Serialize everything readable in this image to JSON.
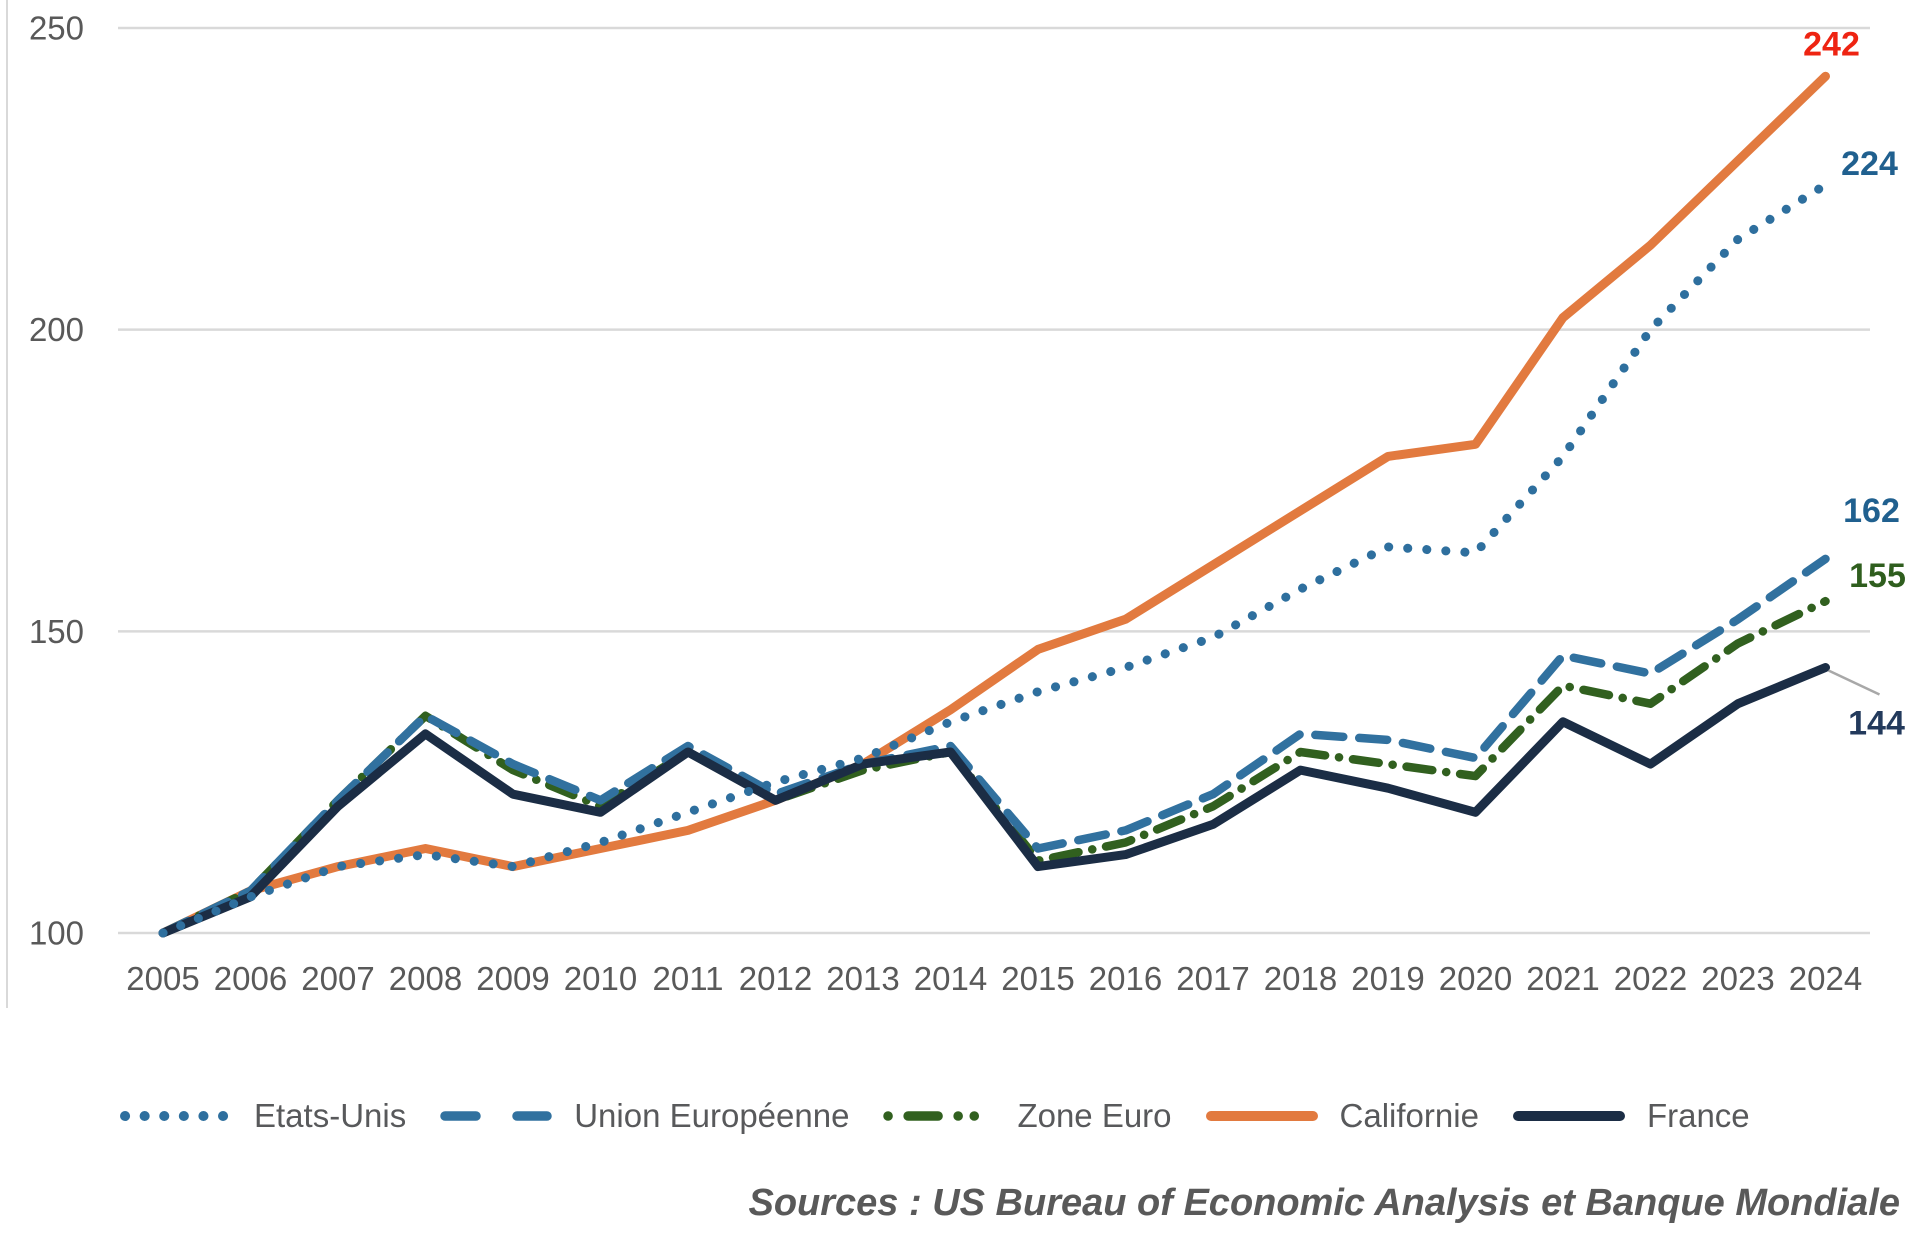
{
  "chart_data": {
    "type": "line",
    "title": "",
    "xlabel": "",
    "ylabel": "",
    "categories": [
      "2005",
      "2006",
      "2007",
      "2008",
      "2009",
      "2010",
      "2011",
      "2012",
      "2013",
      "2014",
      "2015",
      "2016",
      "2017",
      "2018",
      "2019",
      "2020",
      "2021",
      "2022",
      "2023",
      "2024"
    ],
    "y_ticks": [
      100,
      150,
      200,
      250
    ],
    "ylim": [
      100,
      250
    ],
    "grid": true,
    "legend_position": "bottom",
    "axis_text_color": "#595959",
    "grid_color": "#D9D9D9",
    "leader_color": "#A8A8A8",
    "series": [
      {
        "name": "Etats-Unis",
        "style": "dotted",
        "color": "#2E6F9E",
        "label_color": "#20608F",
        "end_label": "224",
        "end_label_offset": [
          44,
          -10
        ],
        "z": 5,
        "values": [
          100,
          106,
          111,
          113,
          111,
          115,
          120,
          125,
          129,
          135,
          140,
          144,
          149,
          157,
          164,
          163,
          179,
          200,
          215,
          224
        ]
      },
      {
        "name": "Union Européenne",
        "style": "dashed",
        "color": "#31719F",
        "label_color": "#20608F",
        "end_label": "162",
        "end_label_offset": [
          46,
          -37
        ],
        "z": 3,
        "values": [
          100,
          107,
          122,
          136,
          128,
          122,
          131,
          123,
          128,
          131,
          114,
          117,
          123,
          133,
          132,
          129,
          146,
          143,
          152,
          162
        ]
      },
      {
        "name": "Zone Euro",
        "style": "dashdot",
        "color": "#31601F",
        "label_color": "#2F5E1E",
        "end_label": "155",
        "end_label_offset": [
          52,
          -14
        ],
        "z": 2,
        "values": [
          100,
          107,
          122,
          136,
          127,
          121,
          130,
          122,
          127,
          130,
          112,
          115,
          121,
          130,
          128,
          126,
          141,
          138,
          148,
          155
        ]
      },
      {
        "name": "Californie",
        "style": "solid",
        "color": "#E27A3F",
        "label_color": "#EE2412",
        "end_label": "242",
        "end_label_offset": [
          6,
          -21
        ],
        "z": 1,
        "values": [
          100,
          107,
          111,
          114,
          111,
          114,
          117,
          122,
          128,
          137,
          147,
          152,
          161,
          170,
          179,
          181,
          202,
          214,
          228,
          242
        ]
      },
      {
        "name": "France",
        "style": "solid",
        "color": "#1B2D45",
        "label_color": "#233A5C",
        "end_label": "144",
        "end_label_offset": [
          51,
          67
        ],
        "leader": [
          3,
          3,
          54,
          27
        ],
        "z": 4,
        "values": [
          100,
          106,
          121,
          133,
          123,
          120,
          130,
          122,
          128,
          130,
          111,
          113,
          118,
          127,
          124,
          120,
          135,
          128,
          138,
          144
        ]
      }
    ],
    "source_note": "Sources : US Bureau of Economic Analysis et Banque Mondiale"
  }
}
